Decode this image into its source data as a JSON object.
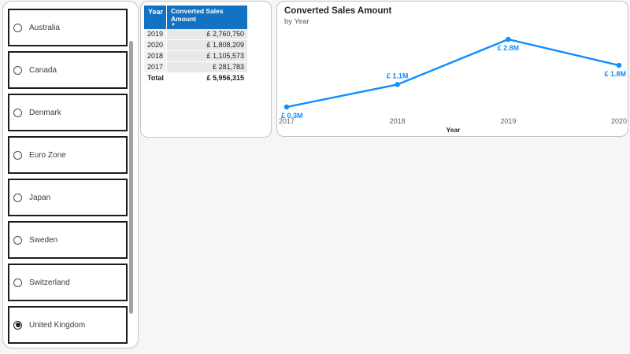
{
  "page": {
    "background": "#f6f6f6"
  },
  "slicer": {
    "items": [
      {
        "label": "Australia",
        "selected": false
      },
      {
        "label": "Canada",
        "selected": false
      },
      {
        "label": "Denmark",
        "selected": false
      },
      {
        "label": "Euro Zone",
        "selected": false
      },
      {
        "label": "Japan",
        "selected": false
      },
      {
        "label": "Sweden",
        "selected": false
      },
      {
        "label": "Switzerland",
        "selected": false
      },
      {
        "label": "United Kingdom",
        "selected": true
      }
    ]
  },
  "table": {
    "columns": [
      "Year",
      "Converted Sales Amount"
    ],
    "sort_column": "Converted Sales Amount",
    "sort_icon": "▼",
    "header_color": "#1372c2",
    "rows": [
      {
        "year": "2019",
        "amount": "£ 2,760,750"
      },
      {
        "year": "2020",
        "amount": "£ 1,808,209"
      },
      {
        "year": "2018",
        "amount": "£ 1,105,573"
      },
      {
        "year": "2017",
        "amount": "£ 281,783"
      }
    ],
    "total": {
      "label": "Total",
      "value": "£ 5,956,315"
    }
  },
  "chart_data": {
    "type": "line",
    "title": "Converted Sales Amount",
    "subtitle": "by Year",
    "x": [
      "2017",
      "2018",
      "2019",
      "2020"
    ],
    "values": [
      281783,
      1105573,
      2760750,
      1808209
    ],
    "data_labels": [
      "£ 0.3M",
      "£ 1.1M",
      "£ 2.8M",
      "£ 1.8M"
    ],
    "label_positions": [
      "below",
      "above",
      "below",
      "below"
    ],
    "xlabel": "Year",
    "ylim": [
      0,
      3000000
    ],
    "grid": false,
    "legend": "none",
    "line_color": "#118DFF"
  }
}
